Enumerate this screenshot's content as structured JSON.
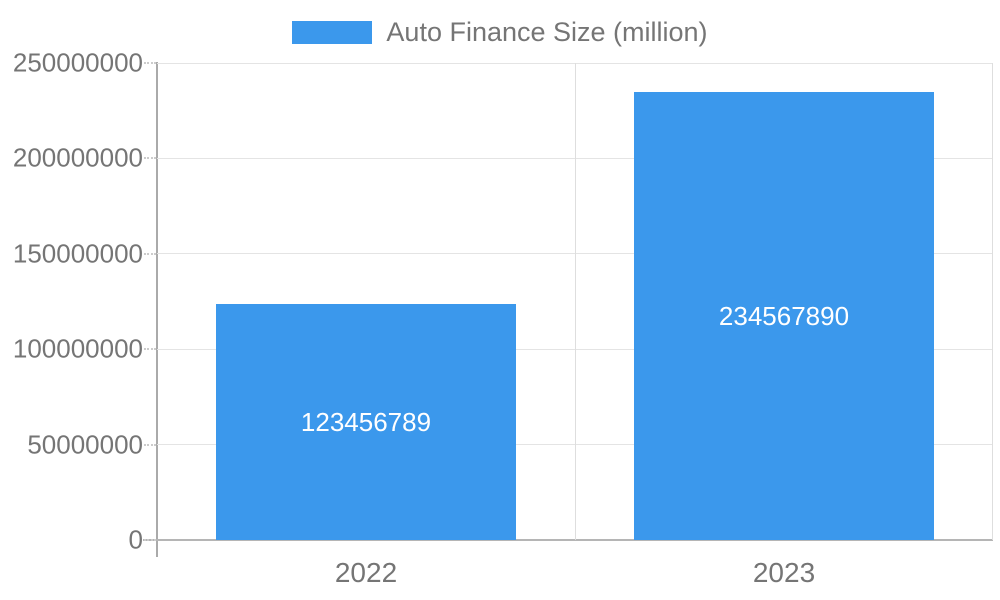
{
  "legend": {
    "label": "Auto Finance Size (million)",
    "swatch_color": "#3b98ec"
  },
  "chart_data": {
    "type": "bar",
    "title": "Auto Finance Size (million)",
    "categories": [
      "2022",
      "2023"
    ],
    "series": [
      {
        "name": "Auto Finance Size (million)",
        "values": [
          123456789,
          234567890
        ]
      }
    ],
    "bar_labels": [
      "123456789",
      "234567890"
    ],
    "xlabel": "",
    "ylabel": "",
    "ylim": [
      0,
      250000000
    ],
    "yticks": [
      0,
      50000000,
      100000000,
      150000000,
      200000000,
      250000000
    ],
    "ytick_labels": [
      "0",
      "50000000",
      "100000000",
      "150000000",
      "200000000",
      "250000000"
    ],
    "grid": true,
    "legend_position": "top-center",
    "colors": {
      "bar": "#3b98ec",
      "grid": "#e4e4e4",
      "grid_vertical": "#dedede",
      "axis": "#aaaaaa",
      "text": "#757575",
      "bar_label_text": "#ffffff",
      "background": "#ffffff"
    }
  }
}
